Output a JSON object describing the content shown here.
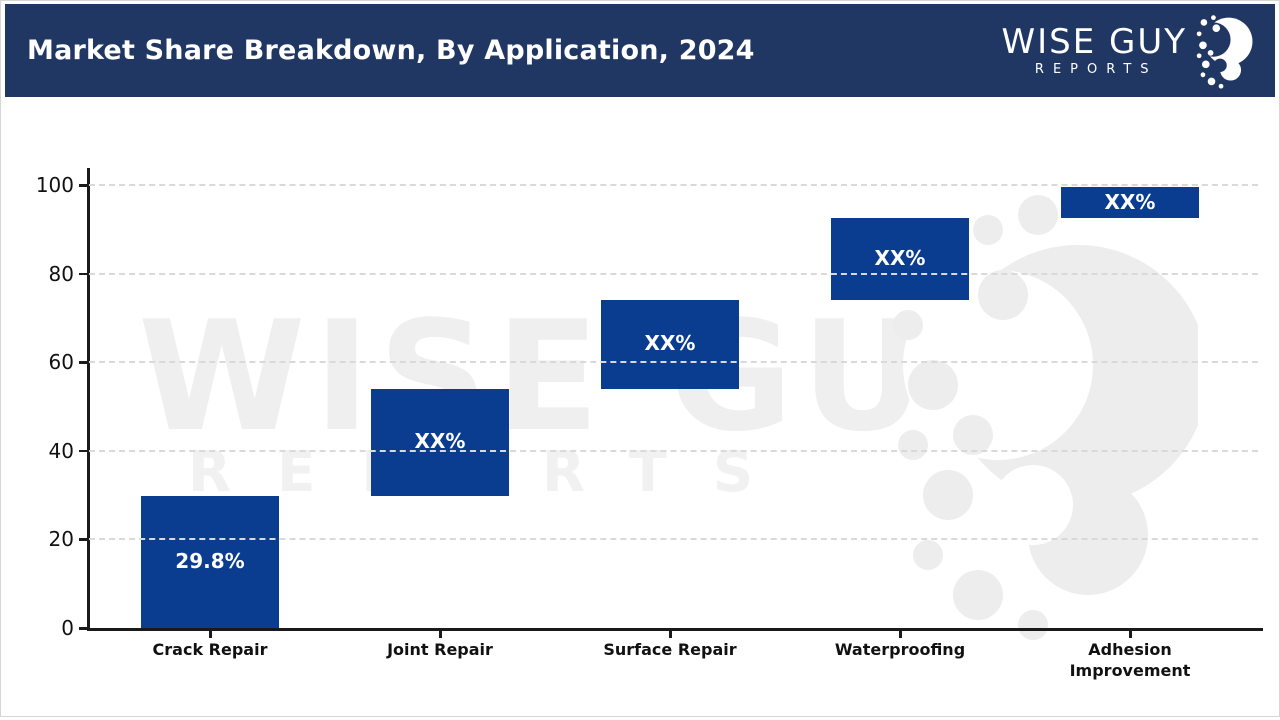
{
  "header": {
    "title": "Market Share Breakdown, By Application, 2024"
  },
  "logo": {
    "name": "WISE GUY",
    "sub": "REPORTS"
  },
  "watermark": {
    "line1": "WISE GUY",
    "line2": "REPORTS"
  },
  "colors": {
    "header_bg": "#203764",
    "bar": "#0a3d8f",
    "bar_label": "#ffffff",
    "grid": "#d9d9d9",
    "axis": "#1a1a1a",
    "watermark": "#efefef",
    "frame": "#d6d6d6"
  },
  "chart_data": {
    "type": "bar",
    "subtype": "waterfall",
    "title": "Market Share Breakdown, By Application, 2024",
    "xlabel": "",
    "ylabel": "",
    "categories": [
      "Crack Repair",
      "Joint Repair",
      "Surface Repair",
      "Waterproofing",
      "Adhesion Improvement"
    ],
    "segments": [
      {
        "category": "Crack Repair",
        "start": 0,
        "end": 29.8,
        "label": "29.8%"
      },
      {
        "category": "Joint Repair",
        "start": 29.8,
        "end": 54,
        "label": "XX%"
      },
      {
        "category": "Surface Repair",
        "start": 54,
        "end": 74,
        "label": "XX%"
      },
      {
        "category": "Waterproofing",
        "start": 74,
        "end": 92.5,
        "label": "XX%"
      },
      {
        "category": "Adhesion Improvement",
        "start": 92.5,
        "end": 99.5,
        "label": "XX%"
      }
    ],
    "yticks": [
      0,
      20,
      40,
      60,
      80,
      100
    ],
    "ylim": [
      0,
      104
    ],
    "grid": "horizontal-dashed",
    "legend": "none",
    "bar_color": "#0a3d8f",
    "label_color": "#ffffff",
    "background": "#ffffff"
  }
}
